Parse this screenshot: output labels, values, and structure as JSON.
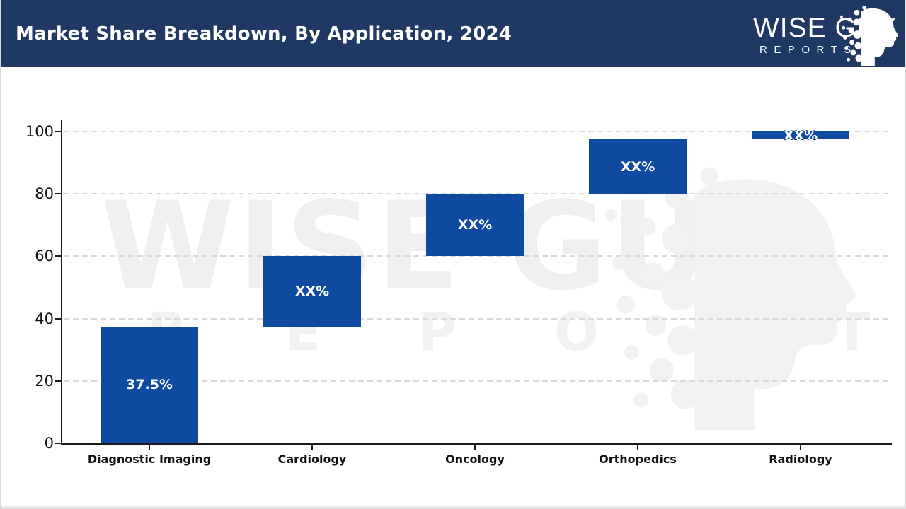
{
  "header": {
    "title": "Market Share Breakdown, By Application, 2024",
    "logo": {
      "line1": "WISE GUY",
      "line2": "REPORTS"
    }
  },
  "watermark": {
    "line1": "WISE GUY",
    "line2": "R E P O R T S"
  },
  "chart_data": {
    "type": "bar",
    "subtype": "waterfall",
    "title": "Market Share Breakdown, By Application, 2024",
    "categories": [
      "Diagnostic Imaging",
      "Cardiology",
      "Oncology",
      "Orthopedics",
      "Radiology"
    ],
    "bars": [
      {
        "category": "Diagnostic Imaging",
        "start": 0,
        "end": 37.5,
        "label": "37.5%"
      },
      {
        "category": "Cardiology",
        "start": 37.5,
        "end": 60,
        "label": "XX%"
      },
      {
        "category": "Oncology",
        "start": 60,
        "end": 80,
        "label": "XX%"
      },
      {
        "category": "Orthopedics",
        "start": 80,
        "end": 97.5,
        "label": "XX%"
      },
      {
        "category": "Radiology",
        "start": 97.5,
        "end": 100,
        "label": "XX%"
      }
    ],
    "yticks": [
      0,
      20,
      40,
      60,
      80,
      100
    ],
    "ylim": [
      0,
      103.5
    ],
    "xlabel": "",
    "ylabel": "",
    "grid": "horizontal-dashed",
    "legend": "none",
    "colors": {
      "bar": "#0D4AA0",
      "header_bg": "#1F3864",
      "label_on_bar": "#FFFFFF",
      "label_off_bar": "#17335F",
      "grid": "#D8D8D8",
      "axis": "#1A1A1A"
    }
  }
}
